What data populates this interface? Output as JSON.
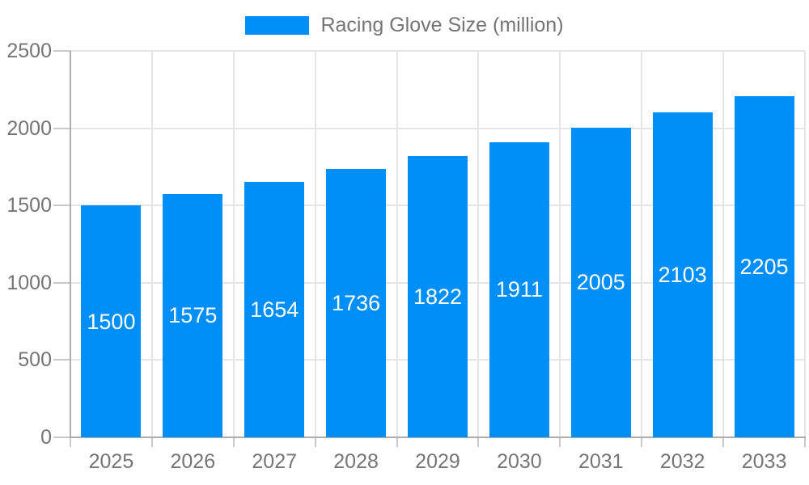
{
  "legend": {
    "label": "Racing Glove Size (million)"
  },
  "chart_data": {
    "type": "bar",
    "title": "Racing Glove Size (million)",
    "legend_position": "top",
    "categories": [
      "2025",
      "2026",
      "2027",
      "2028",
      "2029",
      "2030",
      "2031",
      "2032",
      "2033"
    ],
    "values": [
      1500,
      1575,
      1654,
      1736,
      1822,
      1911,
      2005,
      2103,
      2205
    ],
    "xlabel": "",
    "ylabel": "",
    "ylim": [
      0,
      2500
    ],
    "y_ticks": [
      0,
      500,
      1000,
      1500,
      2000,
      2500
    ],
    "grid": true,
    "colors": {
      "bar": "#008ef8",
      "grid": "#e5e5e5",
      "axis": "#aeaeae",
      "tick": "#c9c9c9",
      "label": "#757575",
      "bar_label": "#ffffff",
      "background": "#ffffff"
    }
  }
}
